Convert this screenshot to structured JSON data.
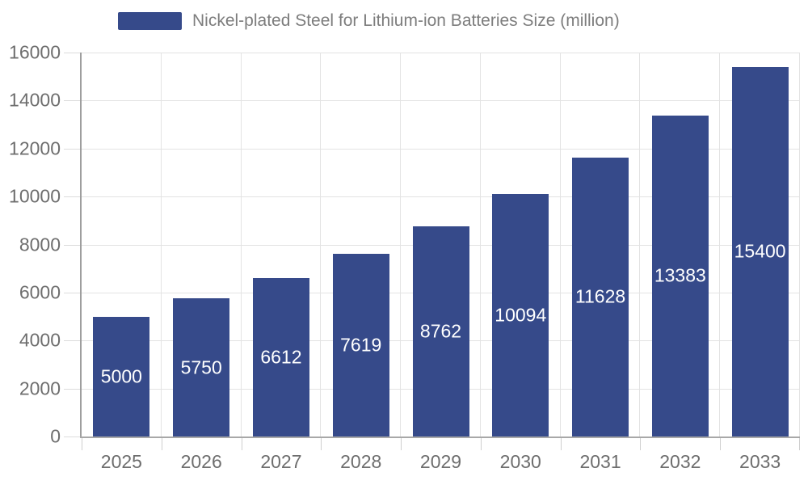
{
  "legend": {
    "label": "Nickel-plated Steel for Lithium-ion Batteries Size (million)",
    "swatch_color": "#364a8a"
  },
  "chart_data": {
    "type": "bar",
    "title": "Nickel-plated Steel for Lithium-ion Batteries Size (million)",
    "categories": [
      "2025",
      "2026",
      "2027",
      "2028",
      "2029",
      "2030",
      "2031",
      "2032",
      "2033"
    ],
    "values": [
      5000,
      5750,
      6612,
      7619,
      8762,
      10094,
      11628,
      13383,
      15400
    ],
    "xlabel": "",
    "ylabel": "",
    "ylim": [
      0,
      16000
    ],
    "yticks": [
      0,
      2000,
      4000,
      6000,
      8000,
      10000,
      12000,
      14000,
      16000
    ],
    "grid": true,
    "legend_position": "top",
    "bar_color": "#364a8a",
    "value_label_color": "#ffffff",
    "axis_tick_label_color": "#6e6e6e",
    "gridline_color": "#e3e3e3",
    "axis_line_color": "#9e9e9e"
  }
}
